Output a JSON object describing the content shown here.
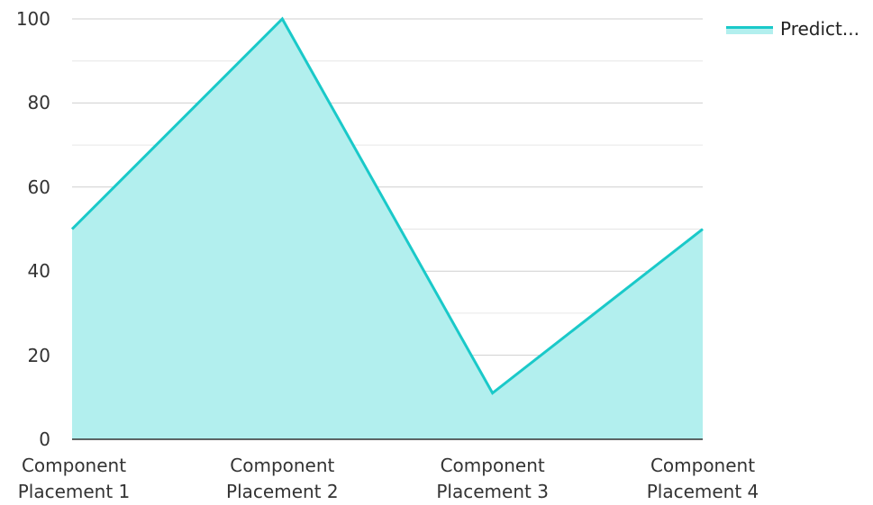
{
  "chart_data": {
    "type": "area",
    "categories": [
      "Component\nPlacement 1",
      "Component\nPlacement 2",
      "Component\nPlacement 3",
      "Component\nPlacement 4"
    ],
    "category_lines": [
      [
        "Component",
        "Placement 1"
      ],
      [
        "Component",
        "Placement 2"
      ],
      [
        "Component",
        "Placement 3"
      ],
      [
        "Component",
        "Placement 4"
      ]
    ],
    "series": [
      {
        "name": "Predict...",
        "values": [
          50,
          100,
          11,
          50
        ],
        "line_color": "#1ac9c9",
        "fill_color": "#b2efee"
      }
    ],
    "ylim": [
      0,
      100
    ],
    "yticks": [
      0,
      20,
      40,
      60,
      80,
      100
    ],
    "grid": true,
    "legend_position": "top-right"
  }
}
